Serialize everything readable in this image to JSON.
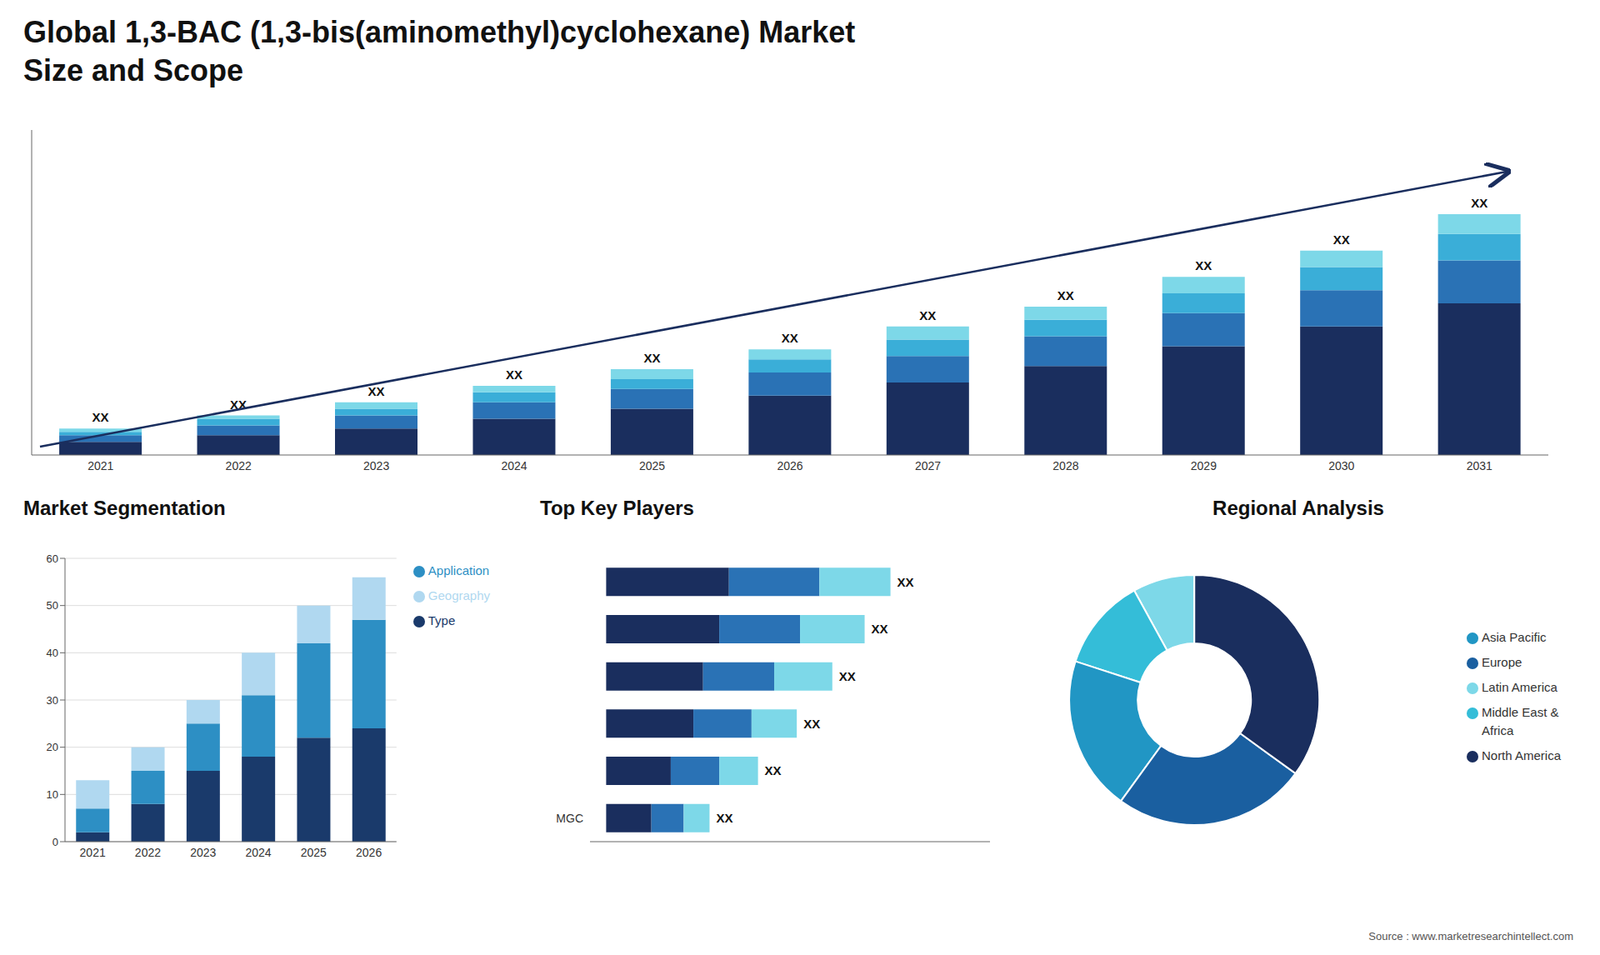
{
  "title": "Global 1,3-BAC (1,3-bis(aminomethyl)cyclohexane) Market",
  "subtitle": "Size and Scope",
  "annotations": [
    "Source : www.marketresearchintellect.com"
  ],
  "chart_data": [
    {
      "type": "bar",
      "stacked": true,
      "categories": [
        "2021",
        "2022",
        "2023",
        "2024",
        "2025",
        "2026",
        "2027",
        "2028",
        "2029",
        "2030",
        "2031"
      ],
      "series": [
        {
          "color": "#1a2e5e",
          "values": [
            4,
            6,
            8,
            11,
            14,
            18,
            22,
            27,
            33,
            39,
            46
          ]
        },
        {
          "color": "#2a72b5",
          "values": [
            2,
            3,
            4,
            5,
            6,
            7,
            8,
            9,
            10,
            11,
            13
          ]
        },
        {
          "color": "#3aaed8",
          "values": [
            1,
            2,
            2,
            3,
            3,
            4,
            5,
            5,
            6,
            7,
            8
          ]
        },
        {
          "color": "#7dd8e8",
          "values": [
            1,
            1,
            2,
            2,
            3,
            3,
            4,
            4,
            5,
            5,
            6
          ]
        }
      ],
      "ylim": [
        0,
        98.55
      ],
      "yticks": [],
      "tick_labels": "x",
      "grid": false,
      "annotations": [
        "XX",
        "XX",
        "XX",
        "XX",
        "XX",
        "XX",
        "XX",
        "XX",
        "XX",
        "XX",
        "XX"
      ]
    },
    {
      "type": "bar",
      "title": "Market Segmentation",
      "stacked": true,
      "categories": [
        "2021",
        "2022",
        "2023",
        "2024",
        "2025",
        "2026"
      ],
      "series": [
        {
          "name": "Type",
          "color": "#1a3a6b",
          "values": [
            2,
            8,
            15,
            18,
            22,
            24
          ]
        },
        {
          "name": "Application",
          "color": "#2d8fc4",
          "values": [
            5,
            7,
            10,
            13,
            20,
            23
          ]
        },
        {
          "name": "Geography",
          "color": "#b0d8f0",
          "values": [
            6,
            5,
            5,
            9,
            8,
            9
          ]
        }
      ],
      "ylim": [
        0,
        60
      ],
      "yticks": [
        0,
        10,
        20,
        30,
        40,
        50,
        60
      ],
      "grid": true,
      "legend": "right"
    },
    {
      "type": "bar",
      "title": "Top Key Players",
      "orientation": "horizontal",
      "stacked": true,
      "categories": [
        null,
        null,
        null,
        null,
        null,
        "MGC"
      ],
      "series": [
        {
          "color": "#1a2e5e",
          "values": [
            38,
            35,
            30,
            27,
            20,
            14
          ]
        },
        {
          "color": "#2a72b5",
          "values": [
            28,
            25,
            22,
            18,
            15,
            10
          ]
        },
        {
          "color": "#7dd8e8",
          "values": [
            22,
            20,
            18,
            14,
            12,
            8
          ]
        }
      ],
      "xlim": [
        -5,
        118.8
      ],
      "xticks": [],
      "tick_labels": "y",
      "grid": false,
      "annotations": [
        "XX",
        "XX",
        "XX",
        "XX",
        "XX",
        "XX"
      ]
    },
    {
      "type": "pie",
      "title": "Regional Analysis",
      "categories": [
        "Latin America",
        "Middle East &\nAfrica",
        "Asia Pacific",
        "Europe",
        "North America"
      ],
      "values": [
        8,
        12,
        20,
        25,
        35
      ],
      "colors": [
        "#7dd8e8",
        "#34bdd8",
        "#2196c4",
        "#1a5fa0",
        "#1a2e5e"
      ],
      "legend": "right"
    }
  ]
}
